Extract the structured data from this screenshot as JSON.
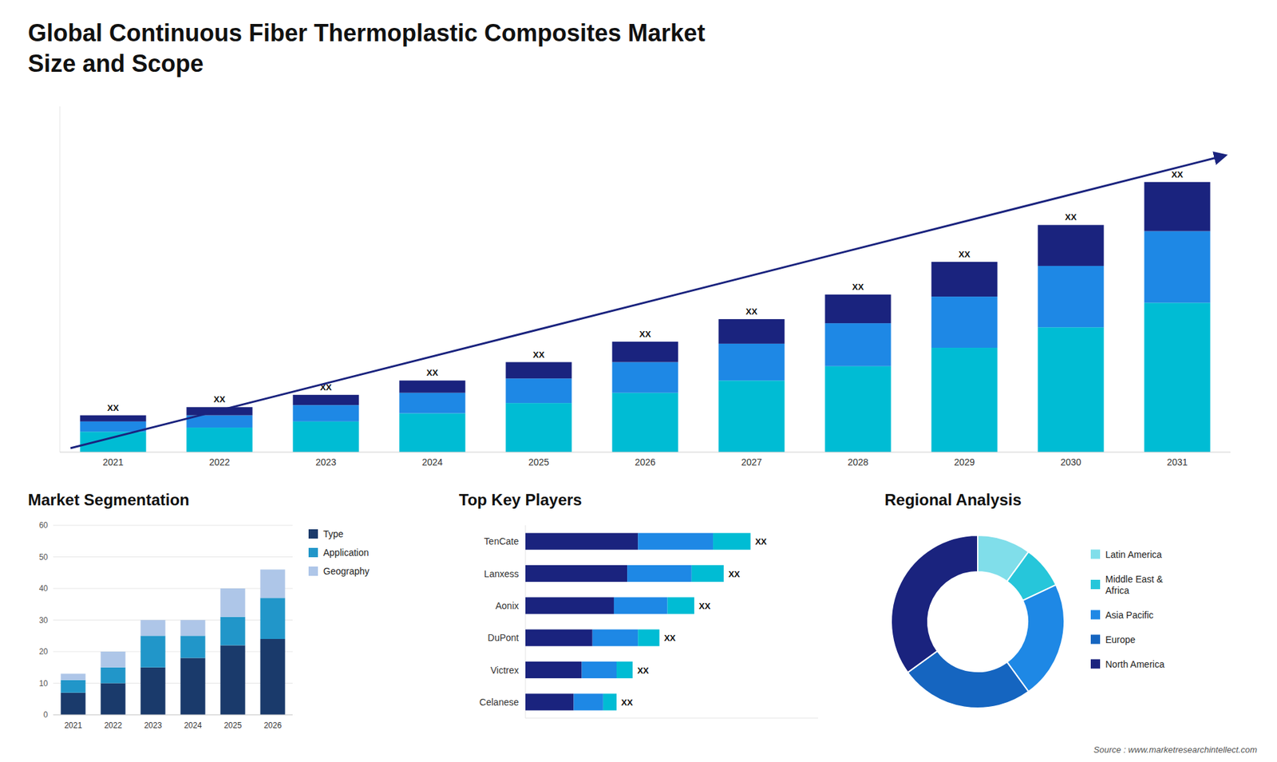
{
  "chart_data": [
    {
      "type": "bar",
      "title": "Global Continuous Fiber Thermoplastic Composites Market",
      "subtitle": "Size and Scope",
      "annotations": [
        "Source : www.marketresearchintellect.com"
      ],
      "stacked": true,
      "categories": [
        "2021",
        "2022",
        "2023",
        "2024",
        "2025",
        "2026",
        "2027",
        "2028",
        "2029",
        "2030",
        "2031"
      ],
      "series": [
        {
          "color": "#00bcd4",
          "values": [
            1.0,
            1.2,
            1.5,
            1.9,
            2.4,
            2.9,
            3.5,
            4.2,
            5.1,
            6.1,
            7.3
          ]
        },
        {
          "color": "#1e88e5",
          "values": [
            0.5,
            0.6,
            0.8,
            1.0,
            1.2,
            1.5,
            1.8,
            2.1,
            2.5,
            3.0,
            3.5
          ]
        },
        {
          "color": "#1a237e",
          "values": [
            0.3,
            0.4,
            0.5,
            0.6,
            0.8,
            1.0,
            1.2,
            1.4,
            1.7,
            2.0,
            2.4
          ],
          "value_labels": [
            "XX",
            "XX",
            "XX",
            "XX",
            "XX",
            "XX",
            "XX",
            "XX",
            "XX",
            "XX",
            "XX"
          ]
        }
      ],
      "ylim": [
        0,
        16.896
      ],
      "tick_labels": "x"
    },
    {
      "type": "bar",
      "title": "Market Segmentation",
      "stacked": true,
      "categories": [
        "2021",
        "2022",
        "2023",
        "2024",
        "2025",
        "2026"
      ],
      "series": [
        {
          "name": "Type",
          "color": "#1a3a6b",
          "values": [
            7,
            10,
            15,
            18,
            22,
            24
          ]
        },
        {
          "name": "Application",
          "color": "#2196c9",
          "values": [
            4,
            5,
            10,
            7,
            9,
            13
          ]
        },
        {
          "name": "Geography",
          "color": "#aec6e8",
          "values": [
            2,
            5,
            5,
            5,
            9,
            9
          ]
        }
      ],
      "ylim": [
        0,
        60
      ],
      "yticks": [
        0,
        10,
        20,
        30,
        40,
        50,
        60
      ],
      "grid": true,
      "legend": "right"
    },
    {
      "type": "bar",
      "title": "Top Key Players",
      "orientation": "horizontal",
      "stacked": true,
      "categories": [
        "TenCate",
        "Lanxess",
        "Aonix",
        "DuPont",
        "Victrex",
        "Celanese"
      ],
      "series": [
        {
          "color": "#1a237e",
          "values": [
            4.2,
            3.8,
            3.3,
            2.5,
            2.1,
            1.8
          ]
        },
        {
          "color": "#1e88e5",
          "values": [
            2.8,
            2.4,
            2.0,
            1.7,
            1.3,
            1.1
          ]
        },
        {
          "color": "#00bcd4",
          "values": [
            1.4,
            1.2,
            1.0,
            0.8,
            0.6,
            0.5
          ],
          "value_labels": [
            "XX",
            "XX",
            "XX",
            "XX",
            "XX",
            "XX"
          ]
        }
      ],
      "xlim": [
        0,
        10.92
      ],
      "tick_labels": "y"
    },
    {
      "type": "donut",
      "title": "Regional Analysis",
      "categories": [
        "Latin America",
        "Middle East &\nAfrica",
        "Asia Pacific",
        "Europe",
        "North America"
      ],
      "values": [
        10,
        8,
        22,
        25,
        35
      ],
      "colors": [
        "#80deea",
        "#26c6da",
        "#1e88e5",
        "#1565c0",
        "#1a237e"
      ],
      "legend": "right"
    }
  ]
}
